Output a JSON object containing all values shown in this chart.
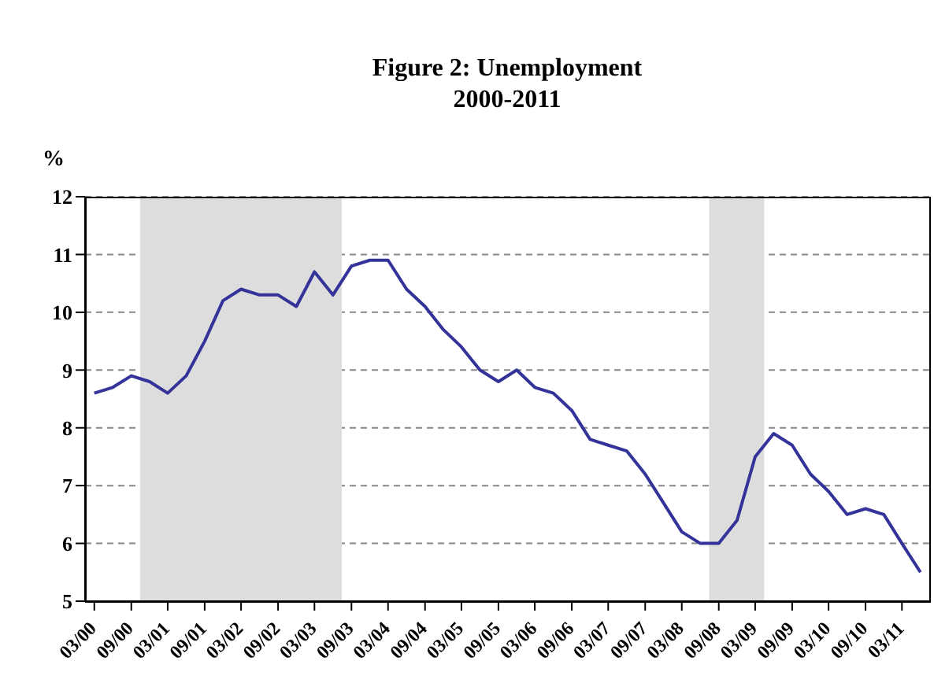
{
  "chart_data": {
    "type": "line",
    "title": "Figure 2: Unemployment",
    "subtitle": "2000-2011",
    "ylabel": "%",
    "x": [
      "2000-03",
      "2000-06",
      "2000-09",
      "2000-12",
      "2001-03",
      "2001-06",
      "2001-09",
      "2001-12",
      "2002-03",
      "2002-06",
      "2002-09",
      "2002-12",
      "2003-03",
      "2003-06",
      "2003-09",
      "2003-12",
      "2004-03",
      "2004-06",
      "2004-09",
      "2004-12",
      "2005-03",
      "2005-06",
      "2005-09",
      "2005-12",
      "2006-03",
      "2006-06",
      "2006-09",
      "2006-12",
      "2007-03",
      "2007-06",
      "2007-09",
      "2007-12",
      "2008-03",
      "2008-06",
      "2008-09",
      "2008-12",
      "2009-03",
      "2009-06",
      "2009-09",
      "2009-12",
      "2010-03",
      "2010-06",
      "2010-09",
      "2010-12",
      "2011-03",
      "2011-06"
    ],
    "series": [
      {
        "color": "#333399",
        "values": [
          8.6,
          8.7,
          8.9,
          8.8,
          8.6,
          8.9,
          9.5,
          10.2,
          10.4,
          10.3,
          10.3,
          10.1,
          10.7,
          10.3,
          10.8,
          10.9,
          10.9,
          10.4,
          10.1,
          9.7,
          9.4,
          9.0,
          8.8,
          9.0,
          8.7,
          8.6,
          8.3,
          7.8,
          7.7,
          7.6,
          7.2,
          6.7,
          6.2,
          6.0,
          6.0,
          6.4,
          7.5,
          7.9,
          7.7,
          7.2,
          6.9,
          6.5,
          6.6,
          6.5,
          6.0,
          5.5
        ]
      }
    ],
    "xlim": [
      "2000-01-15",
      "2011-07-15"
    ],
    "xticks": [
      {
        "value": "2000-03",
        "label": "03/00"
      },
      {
        "value": "2000-09",
        "label": "09/00"
      },
      {
        "value": "2001-03",
        "label": "03/01"
      },
      {
        "value": "2001-09",
        "label": "09/01"
      },
      {
        "value": "2002-03",
        "label": "03/02"
      },
      {
        "value": "2002-09",
        "label": "09/02"
      },
      {
        "value": "2003-03",
        "label": "03/03"
      },
      {
        "value": "2003-09",
        "label": "09/03"
      },
      {
        "value": "2004-03",
        "label": "03/04"
      },
      {
        "value": "2004-09",
        "label": "09/04"
      },
      {
        "value": "2005-03",
        "label": "03/05"
      },
      {
        "value": "2005-09",
        "label": "09/05"
      },
      {
        "value": "2006-03",
        "label": "03/06"
      },
      {
        "value": "2006-09",
        "label": "09/06"
      },
      {
        "value": "2007-03",
        "label": "03/07"
      },
      {
        "value": "2007-09",
        "label": "09/07"
      },
      {
        "value": "2008-03",
        "label": "03/08"
      },
      {
        "value": "2008-09",
        "label": "09/08"
      },
      {
        "value": "2009-03",
        "label": "03/09"
      },
      {
        "value": "2009-09",
        "label": "09/09"
      },
      {
        "value": "2010-03",
        "label": "03/10"
      },
      {
        "value": "2010-09",
        "label": "09/10"
      },
      {
        "value": "2011-03",
        "label": "03/11"
      }
    ],
    "ylim": [
      5,
      12
    ],
    "yticks": [
      5,
      6,
      7,
      8,
      9,
      10,
      11,
      12
    ],
    "grid": "y",
    "marker": "none",
    "line_style": "solid",
    "bands": [
      {
        "axis": "x",
        "from": "2000-10-15",
        "to": "2003-07-15",
        "color": "#dddddd"
      },
      {
        "axis": "x",
        "from": "2008-07-15",
        "to": "2009-04-15",
        "color": "#dddddd"
      }
    ]
  }
}
